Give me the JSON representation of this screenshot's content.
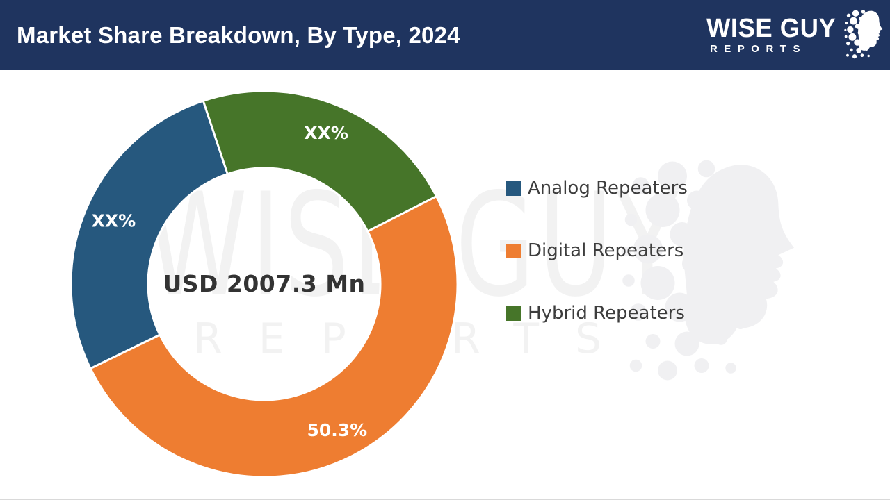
{
  "header": {
    "title": "Market Share Breakdown, By Type, 2024",
    "logo": {
      "line1": "WISE GUY",
      "line2": "REPORTS"
    }
  },
  "watermark": {
    "line1": "WISE GUY",
    "line2": "REPORTS"
  },
  "chart_data": {
    "type": "pie",
    "subtype": "donut",
    "title": "Market Share Breakdown, By Type, 2024",
    "center_label": "USD 2007.3 Mn",
    "start_angle_deg": 108.4,
    "direction": "counterclockwise",
    "inner_radius_ratio": 0.6,
    "legend_position": "right",
    "slices": [
      {
        "name": "Analog Repeaters",
        "display_label": "XX%",
        "value_pct": 27.1,
        "color": "#26587e"
      },
      {
        "name": "Digital Repeaters",
        "display_label": "50.3%",
        "value_pct": 50.3,
        "color": "#ee7d31"
      },
      {
        "name": "Hybrid Repeaters",
        "display_label": "XX%",
        "value_pct": 22.6,
        "color": "#467529"
      }
    ]
  },
  "colors": {
    "header_bg": "#1f345f",
    "center_text": "#333333",
    "legend_text": "#3d3d3d",
    "slice_label": "#ffffff",
    "watermark": "#f2f2f2",
    "watermark_face": "#f0f0f2",
    "bottom_rule": "#d9d9d9"
  }
}
